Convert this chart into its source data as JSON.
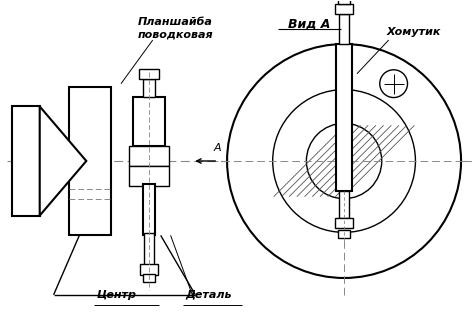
{
  "bg_color": "#ffffff",
  "line_color": "#000000",
  "labels": {
    "planshaiba_line1": "Планшайба",
    "planshaiba_line2": "поводковая",
    "khomutik": "Хомутик",
    "tsentr": "Центр",
    "detal": "Деталь",
    "vid_a": "Вид А",
    "a_label": "А"
  },
  "figsize": [
    4.74,
    3.21
  ],
  "dpi": 100
}
